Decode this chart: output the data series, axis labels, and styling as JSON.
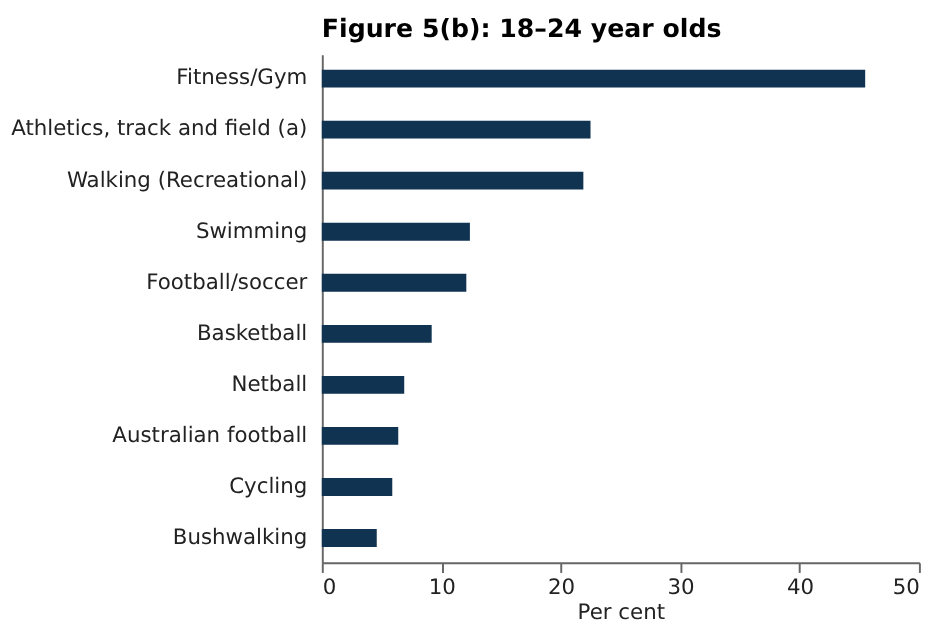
{
  "chart_data": {
    "type": "bar",
    "orientation": "horizontal",
    "title": "Figure 5(b): 18–24 year olds",
    "categories": [
      "Fitness/Gym",
      "Athletics, track and field (a)",
      "Walking (Recreational)",
      "Swimming",
      "Football/soccer",
      "Basketball",
      "Netball",
      "Australian football",
      "Cycling",
      "Bushwalking"
    ],
    "values": [
      45.5,
      22.5,
      21.9,
      12.4,
      12.1,
      9.2,
      6.9,
      6.4,
      5.9,
      4.6
    ],
    "color": "#0f3350",
    "xlabel": "Per cent",
    "xlim": [
      0,
      50
    ],
    "xticks": [
      0,
      10,
      20,
      30,
      40,
      50
    ],
    "grid": false
  }
}
